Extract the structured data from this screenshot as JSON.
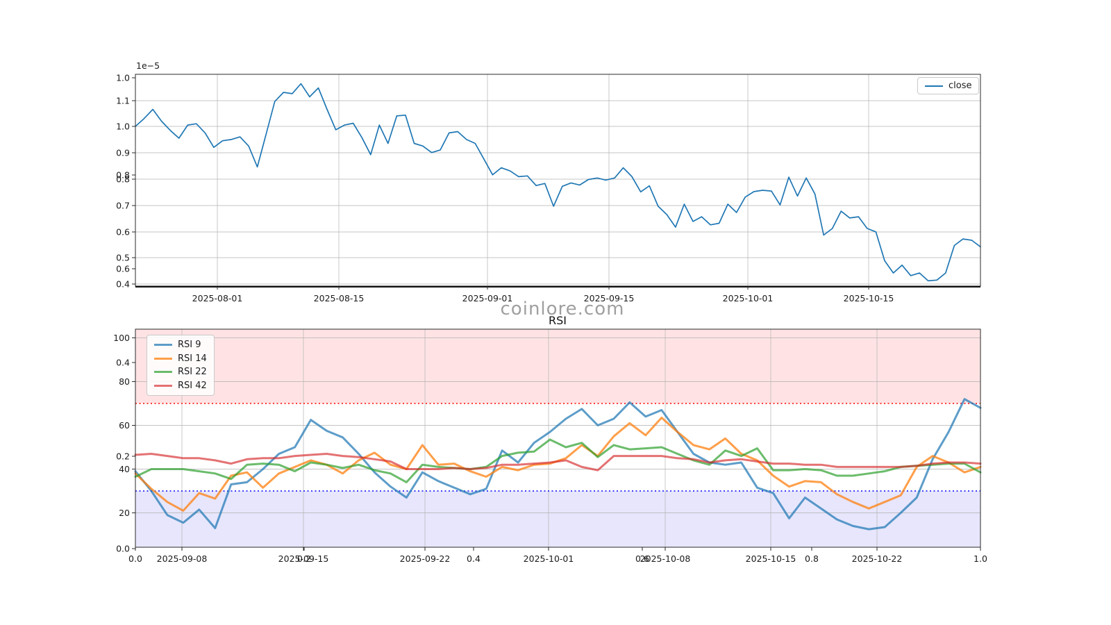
{
  "watermark": "coinlore.com",
  "colors": {
    "close": "#1f77b4",
    "rsi_9": "#1f77b4",
    "rsi_14": "#ff7f0e",
    "rsi_22": "#2ca02c",
    "rsi_42": "#d62728",
    "overbought_band": "rgba(255,40,50,0.13)",
    "oversold_band": "rgba(70,60,235,0.13)",
    "overbought_line": "#ff0000",
    "oversold_line": "#0000ff",
    "grid": "#b0b0b0",
    "watermark_color": "#8f8f8f"
  },
  "price_chart": {
    "legend": [
      "close"
    ],
    "offset_label": "1e−5",
    "y_tick_labels": [
      "1.1",
      "1.0",
      "0.9",
      "0.8",
      "0.7",
      "0.6",
      "0.5",
      "0.4"
    ],
    "x_tick_labels": [
      "2025-08-01",
      "2025-08-15",
      "2025-09-01",
      "2025-09-15",
      "2025-10-01",
      "2025-10-15"
    ]
  },
  "rsi_chart": {
    "title": "RSI",
    "legend": [
      "RSI 9",
      "RSI 14",
      "RSI 22",
      "RSI 42"
    ],
    "y_tick_labels": [
      "100",
      "80",
      "60",
      "40",
      "20"
    ],
    "x_tick_labels": [
      "2025-09-08",
      "2025-09-15",
      "2025-09-22",
      "2025-10-01",
      "2025-10-08",
      "2025-10-15",
      "2025-10-22"
    ],
    "overbought_level": 70,
    "oversold_level": 30
  },
  "overlay_axis": {
    "x_tick_labels": [
      "0.0",
      "0.2",
      "0.4",
      "0.6",
      "0.8",
      "1.0"
    ],
    "y_tick_labels": [
      "1.0",
      "0.8",
      "0.6",
      "0.4",
      "0.2",
      "0.0"
    ]
  },
  "chart_data": [
    {
      "type": "line",
      "title": "",
      "unit_scale": "1e-5",
      "grid": true,
      "legend_position": "upper right",
      "ylim": [
        0.39,
        1.2
      ],
      "x": [
        "2025-07-23",
        "2025-07-24",
        "2025-07-25",
        "2025-07-26",
        "2025-07-27",
        "2025-07-28",
        "2025-07-29",
        "2025-07-30",
        "2025-07-31",
        "2025-08-01",
        "2025-08-02",
        "2025-08-03",
        "2025-08-04",
        "2025-08-05",
        "2025-08-06",
        "2025-08-07",
        "2025-08-08",
        "2025-08-09",
        "2025-08-10",
        "2025-08-11",
        "2025-08-12",
        "2025-08-13",
        "2025-08-14",
        "2025-08-15",
        "2025-08-16",
        "2025-08-17",
        "2025-08-18",
        "2025-08-19",
        "2025-08-20",
        "2025-08-21",
        "2025-08-22",
        "2025-08-23",
        "2025-08-24",
        "2025-08-25",
        "2025-08-26",
        "2025-08-27",
        "2025-08-28",
        "2025-08-29",
        "2025-08-30",
        "2025-08-31",
        "2025-09-01",
        "2025-09-02",
        "2025-09-03",
        "2025-09-04",
        "2025-09-05",
        "2025-09-06",
        "2025-09-07",
        "2025-09-08",
        "2025-09-09",
        "2025-09-10",
        "2025-09-11",
        "2025-09-12",
        "2025-09-13",
        "2025-09-14",
        "2025-09-15",
        "2025-09-16",
        "2025-09-17",
        "2025-09-18",
        "2025-09-19",
        "2025-09-20",
        "2025-09-21",
        "2025-09-22",
        "2025-09-23",
        "2025-09-24",
        "2025-09-25",
        "2025-09-26",
        "2025-09-27",
        "2025-09-28",
        "2025-09-29",
        "2025-09-30",
        "2025-10-01",
        "2025-10-02",
        "2025-10-03",
        "2025-10-04",
        "2025-10-05",
        "2025-10-06",
        "2025-10-07",
        "2025-10-08",
        "2025-10-09",
        "2025-10-10",
        "2025-10-11",
        "2025-10-12",
        "2025-10-13",
        "2025-10-14",
        "2025-10-15",
        "2025-10-16",
        "2025-10-17",
        "2025-10-18",
        "2025-10-19",
        "2025-10-20",
        "2025-10-21",
        "2025-10-22",
        "2025-10-23",
        "2025-10-24",
        "2025-10-25",
        "2025-10-26",
        "2025-10-27",
        "2025-10-28"
      ],
      "series": [
        {
          "name": "close",
          "values": [
            1.0,
            1.03,
            1.065,
            1.02,
            0.985,
            0.955,
            1.005,
            1.01,
            0.975,
            0.92,
            0.945,
            0.95,
            0.96,
            0.925,
            0.845,
            0.97,
            1.095,
            1.13,
            1.125,
            1.163,
            1.113,
            1.147,
            1.065,
            0.987,
            1.005,
            1.012,
            0.957,
            0.892,
            1.005,
            0.935,
            1.04,
            1.043,
            0.935,
            0.925,
            0.9,
            0.91,
            0.975,
            0.98,
            0.95,
            0.935,
            0.875,
            0.815,
            0.842,
            0.83,
            0.808,
            0.811,
            0.774,
            0.782,
            0.695,
            0.771,
            0.784,
            0.776,
            0.797,
            0.803,
            0.795,
            0.803,
            0.842,
            0.808,
            0.75,
            0.773,
            0.695,
            0.663,
            0.615,
            0.703,
            0.637,
            0.655,
            0.624,
            0.63,
            0.703,
            0.671,
            0.73,
            0.751,
            0.756,
            0.753,
            0.7,
            0.806,
            0.734,
            0.803,
            0.742,
            0.585,
            0.61,
            0.676,
            0.65,
            0.655,
            0.61,
            0.597,
            0.487,
            0.44,
            0.47,
            0.43,
            0.44,
            0.41,
            0.413,
            0.44,
            0.545,
            0.57,
            0.565,
            0.54
          ]
        }
      ]
    },
    {
      "type": "line",
      "title": "RSI",
      "grid": true,
      "legend_position": "upper left",
      "ylim": [
        0,
        100
      ],
      "hlines": [
        {
          "value": 70,
          "style": "dotted",
          "color": "#ff0000"
        },
        {
          "value": 30,
          "style": "dotted",
          "color": "#0000ff"
        }
      ],
      "bands": [
        {
          "from": 70,
          "to": 100,
          "color": "rgba(255,40,50,0.13)"
        },
        {
          "from": 0,
          "to": 30,
          "color": "rgba(70,60,235,0.13)"
        }
      ],
      "x": [
        "2025-09-05",
        "2025-09-06",
        "2025-09-07",
        "2025-09-08",
        "2025-09-09",
        "2025-09-10",
        "2025-09-11",
        "2025-09-12",
        "2025-09-13",
        "2025-09-14",
        "2025-09-15",
        "2025-09-16",
        "2025-09-17",
        "2025-09-18",
        "2025-09-19",
        "2025-09-20",
        "2025-09-21",
        "2025-09-22",
        "2025-09-23",
        "2025-09-24",
        "2025-09-25",
        "2025-09-26",
        "2025-09-27",
        "2025-09-28",
        "2025-09-29",
        "2025-09-30",
        "2025-10-01",
        "2025-10-02",
        "2025-10-03",
        "2025-10-04",
        "2025-10-05",
        "2025-10-06",
        "2025-10-07",
        "2025-10-08",
        "2025-10-09",
        "2025-10-10",
        "2025-10-11",
        "2025-10-12",
        "2025-10-13",
        "2025-10-14",
        "2025-10-15",
        "2025-10-16",
        "2025-10-17",
        "2025-10-18",
        "2025-10-19",
        "2025-10-20",
        "2025-10-21",
        "2025-10-22",
        "2025-10-23",
        "2025-10-24",
        "2025-10-25",
        "2025-10-26",
        "2025-10-27",
        "2025-10-28"
      ],
      "series": [
        {
          "name": "RSI 9",
          "values": [
            39,
            30,
            19,
            15.5,
            21.5,
            13,
            33,
            34,
            40,
            47,
            50,
            62.5,
            57.5,
            54.5,
            47,
            38.5,
            32,
            27,
            38.5,
            34.5,
            31.5,
            28.5,
            31,
            48.5,
            43,
            52,
            57,
            63,
            67.5,
            60,
            63,
            70.5,
            64,
            67,
            57,
            47,
            43,
            42,
            43,
            31.5,
            29,
            17.5,
            27,
            22,
            17,
            14,
            12.5,
            13.5,
            20,
            27,
            44.5,
            57,
            72,
            68
          ]
        },
        {
          "name": "RSI 14",
          "values": [
            38,
            31,
            25,
            21,
            29,
            26.5,
            37,
            38.5,
            31.5,
            38,
            41,
            44,
            42,
            38,
            44,
            47.5,
            42,
            40,
            51,
            42,
            42.5,
            39,
            36.5,
            41,
            39.5,
            42,
            42.5,
            45,
            51,
            46,
            55,
            61,
            55.5,
            63.5,
            57,
            51,
            49,
            54,
            47,
            44,
            37,
            32,
            34.5,
            34,
            28.5,
            25,
            22,
            25,
            28,
            41,
            46,
            43,
            38.5,
            41
          ]
        },
        {
          "name": "RSI 22",
          "values": [
            36.5,
            40,
            40,
            40,
            39,
            38,
            35.5,
            42,
            42.5,
            42,
            39,
            43,
            42,
            40.5,
            42,
            39.5,
            38,
            34,
            42,
            41,
            40.5,
            40,
            41,
            46,
            47.5,
            48,
            53.5,
            50,
            52,
            45.5,
            51,
            49,
            49.5,
            50,
            47,
            44,
            42,
            48.5,
            46,
            49.5,
            39.5,
            39.5,
            40,
            39.5,
            37,
            37,
            38,
            39,
            41,
            41.5,
            42,
            42.5,
            42.5,
            38.5
          ]
        },
        {
          "name": "RSI 42",
          "values": [
            46.5,
            47,
            46,
            45,
            45,
            44,
            42.5,
            44.5,
            45,
            45,
            46,
            46.5,
            47,
            46,
            45.5,
            44.5,
            43.5,
            40,
            40,
            40,
            40.5,
            40,
            40.5,
            42,
            42,
            42.5,
            43,
            44,
            41,
            39.5,
            46,
            46,
            46,
            46,
            45,
            44.5,
            43,
            44,
            44.5,
            43.5,
            42.5,
            42.5,
            42,
            42,
            41,
            41,
            41,
            41,
            41,
            41.5,
            42.5,
            43,
            43,
            42.5
          ]
        }
      ]
    }
  ]
}
